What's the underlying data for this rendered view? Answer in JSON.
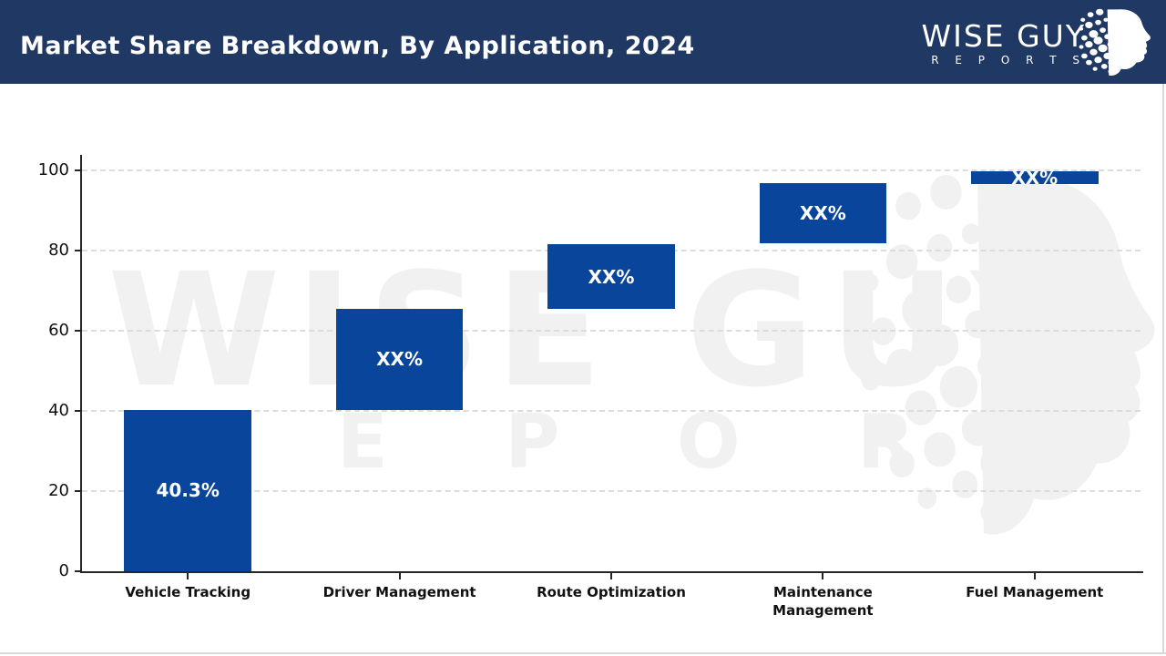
{
  "page": {
    "header": {
      "title": "Market Share Breakdown, By Application, 2024",
      "logo_line1": "WISE GUY",
      "logo_line2": "R E P O R T S"
    },
    "watermark": {
      "line1": "WISE GUY",
      "line2": "R E P O R T S"
    }
  },
  "colors": {
    "header_bg": "#203864",
    "bar_fill": "#0a459c",
    "bar_label": "#ffffff",
    "grid_line": "#dcdcdc",
    "axis_line": "#262626",
    "tick_label": "#111111",
    "watermark": "#f1f1f2",
    "edge_line": "#d9d9d9"
  },
  "chart_data": {
    "type": "bar",
    "subtype": "waterfall",
    "title": "Market Share Breakdown, By Application, 2024",
    "ylim": [
      0,
      100
    ],
    "yticks": [
      0,
      20,
      40,
      60,
      80,
      100
    ],
    "grid": "horizontal-dashed",
    "legend": "none",
    "xlabel": "",
    "ylabel": "",
    "categories": [
      "Vehicle Tracking",
      "Driver Management",
      "Route Optimization",
      "Maintenance Management",
      "Fuel Management"
    ],
    "segments": [
      {
        "category": "Vehicle Tracking",
        "display_category": "Vehicle Tracking",
        "start": 0,
        "end": 40.3,
        "label": "40.3%"
      },
      {
        "category": "Driver Management",
        "display_category": "Driver Management",
        "start": 40.3,
        "end": 65.5,
        "label": "XX%"
      },
      {
        "category": "Route Optimization",
        "display_category": "Route Optimization",
        "start": 65.5,
        "end": 81.5,
        "label": "XX%"
      },
      {
        "category": "Maintenance Management",
        "display_category": "Maintenance\nManagement",
        "start": 81.8,
        "end": 96.9,
        "label": "XX%"
      },
      {
        "category": "Fuel Management",
        "display_category": "Fuel Management",
        "start": 96.6,
        "end": 99.8,
        "label": "XX%"
      }
    ]
  }
}
